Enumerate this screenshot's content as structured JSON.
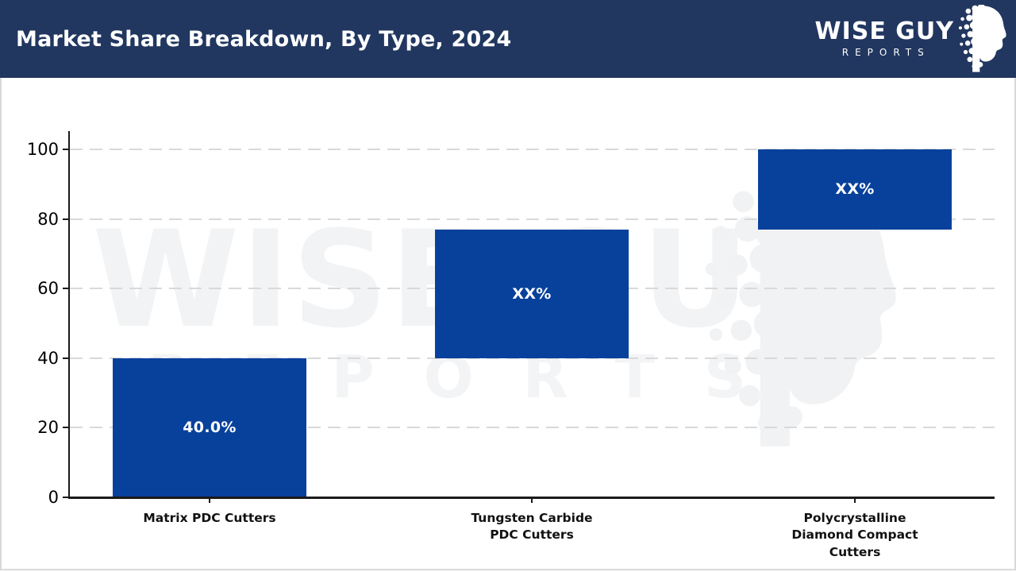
{
  "header": {
    "title": "Market Share Breakdown, By Type, 2024",
    "logo": {
      "line1": "WISE GUY",
      "line2": "REPORTS",
      "face_icon": "face-profile-dots-icon"
    }
  },
  "watermark": {
    "line1": "WISE GUY",
    "line2": "REPORTS"
  },
  "chart_data": {
    "type": "bar",
    "subtype": "waterfall",
    "title": "Market Share Breakdown, By Type, 2024",
    "categories": [
      {
        "lines": [
          "Matrix PDC Cutters"
        ]
      },
      {
        "lines": [
          "Tungsten Carbide",
          "PDC Cutters"
        ]
      },
      {
        "lines": [
          "Polycrystalline",
          "Diamond Compact",
          "Cutters"
        ]
      }
    ],
    "bars": [
      {
        "label": "40.0%",
        "start": 0,
        "end": 40
      },
      {
        "label": "XX%",
        "start": 40,
        "end": 77
      },
      {
        "label": "XX%",
        "start": 77,
        "end": 100
      }
    ],
    "yticks": [
      0,
      20,
      40,
      60,
      80,
      100
    ],
    "ylim": [
      0,
      100
    ],
    "grid": "horizontal-dashed",
    "legend": "none",
    "colors": {
      "bar": "#08419c",
      "bar_label": "#ffffff",
      "grid": "#d9d9d9",
      "axis": "#1a1a1a",
      "header_bg": "#213760",
      "watermark": "#f2f3f5"
    }
  }
}
